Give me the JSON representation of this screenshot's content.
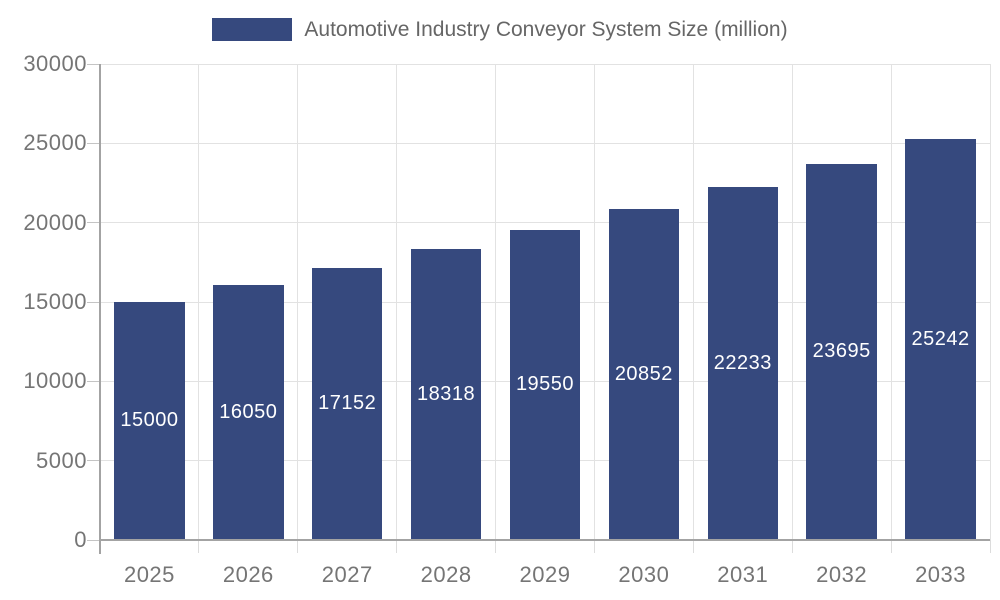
{
  "legend": {
    "label": "Automotive Industry Conveyor System Size (million)"
  },
  "chart_data": {
    "type": "bar",
    "title": "Automotive Industry Conveyor System Size (million)",
    "series_name": "Automotive Industry Conveyor System Size (million)",
    "categories": [
      "2025",
      "2026",
      "2027",
      "2028",
      "2029",
      "2030",
      "2031",
      "2032",
      "2033"
    ],
    "values": [
      15000,
      16050,
      17152,
      18318,
      19550,
      20852,
      22233,
      23695,
      25242
    ],
    "value_labels": [
      "15000",
      "16050",
      "17152",
      "18318",
      "19550",
      "20852",
      "22233",
      "23695",
      "25242"
    ],
    "xlabel": "",
    "ylabel": "",
    "ylim": [
      0,
      30000
    ],
    "yticks": [
      0,
      5000,
      10000,
      15000,
      20000,
      25000,
      30000
    ],
    "grid": true,
    "legend_position": "top-center",
    "colors": {
      "bar": "#36497E",
      "grid": "#E2E2E2",
      "axis": "#A3A3A3",
      "y_tick": "#C4C4C4",
      "x_tick": "#DCDCDC",
      "tick_label": "#757575",
      "legend_text": "#666666",
      "value_label": "#FFFFFF",
      "background": "#FFFFFF"
    }
  }
}
